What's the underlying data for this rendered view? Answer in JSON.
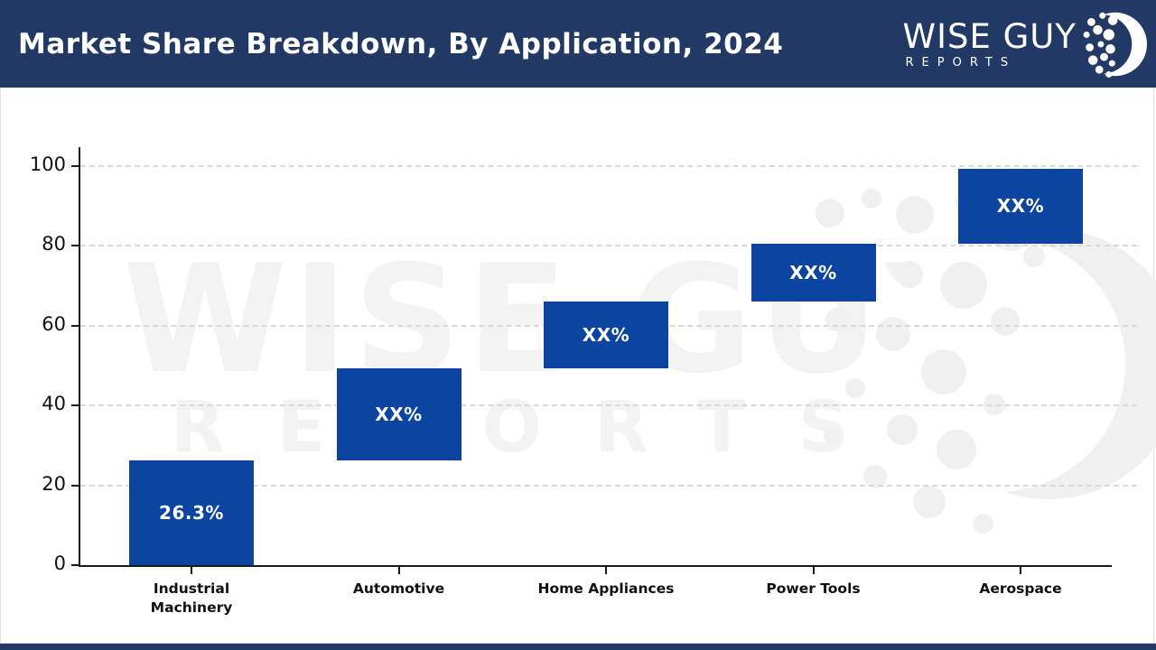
{
  "header": {
    "title": "Market Share Breakdown, By Application, 2024",
    "logo": {
      "line1": "WISE GUY",
      "line2": "REPORTS"
    }
  },
  "watermark": {
    "line1": "WISE GUY",
    "line2": "REPORTS"
  },
  "chart_data": {
    "type": "bar",
    "subtype": "waterfall-floating-segments",
    "title": "Market Share Breakdown, By Application, 2024",
    "categories": [
      "Industrial\nMachinery",
      "Automotive",
      "Home Appliances",
      "Power Tools",
      "Aerospace"
    ],
    "segments": [
      {
        "category": "Industrial Machinery",
        "label": "26.3%",
        "start": 0,
        "end": 26.3
      },
      {
        "category": "Automotive",
        "label": "XX%",
        "start": 26.3,
        "end": 49.3
      },
      {
        "category": "Home Appliances",
        "label": "XX%",
        "start": 49.3,
        "end": 66.1
      },
      {
        "category": "Power Tools",
        "label": "XX%",
        "start": 66.1,
        "end": 80.5
      },
      {
        "category": "Aerospace",
        "label": "XX%",
        "start": 80.5,
        "end": 99.4
      }
    ],
    "y_ticks": [
      0,
      20,
      40,
      60,
      80,
      100
    ],
    "ylim": [
      0,
      105
    ],
    "xlabel": "",
    "ylabel": "",
    "legend": "none",
    "grid": {
      "horizontal": true,
      "style": "dashed"
    },
    "colors": {
      "bar": "#0b45a1",
      "bar_label": "#ffffff",
      "axis": "#1a1a1a",
      "grid": "#d9d9d9",
      "header_bg": "#223965",
      "watermark": "#f3f3f3"
    }
  }
}
